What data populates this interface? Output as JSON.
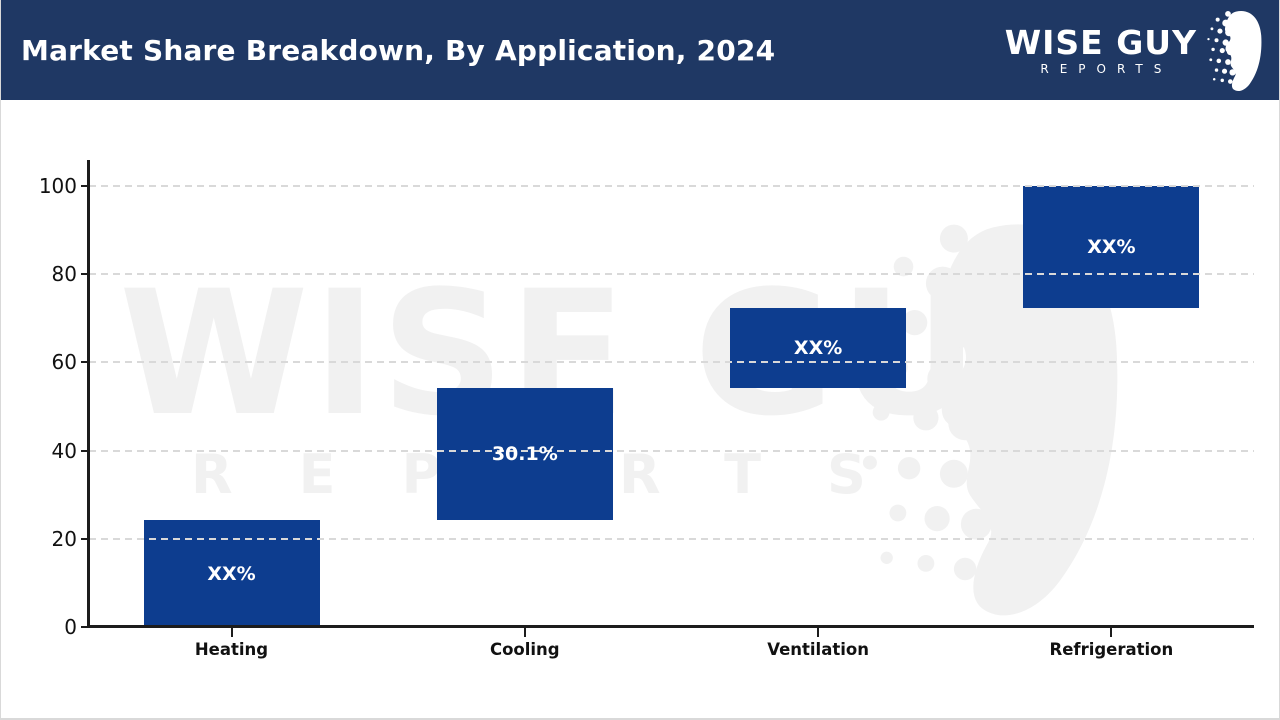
{
  "header": {
    "title": "Market Share Breakdown, By Application, 2024",
    "logo": {
      "title": "WISE GUY",
      "subtitle": "REPORTS"
    }
  },
  "watermark": {
    "title": "WISE GUY",
    "subtitle": "REPORTS"
  },
  "colors": {
    "header_bg": "#1f3864",
    "bar": "#0d3d8f",
    "grid": "#d9d9d9",
    "axis": "#1c1c1c",
    "bar_label": "#ffffff",
    "watermark": "#f1f1f1"
  },
  "chart_data": {
    "type": "bar",
    "subtype": "waterfall-floating-bars",
    "title": "Market Share Breakdown, By Application, 2024",
    "categories": [
      "Heating",
      "Cooling",
      "Ventilation",
      "Refrigeration"
    ],
    "segments": [
      {
        "category": "Heating",
        "start": 0,
        "end": 24.2,
        "label": "XX%"
      },
      {
        "category": "Cooling",
        "start": 24.2,
        "end": 54.3,
        "label": "30.1%"
      },
      {
        "category": "Ventilation",
        "start": 54.3,
        "end": 72.4,
        "label": "XX%"
      },
      {
        "category": "Refrigeration",
        "start": 72.4,
        "end": 100,
        "label": "XX%"
      }
    ],
    "xlabel": "",
    "ylabel": "",
    "ylim": [
      0,
      100
    ],
    "yticks": [
      0,
      20,
      40,
      60,
      80,
      100
    ],
    "grid": "horizontal dashed, drawn above bars",
    "legend": "none",
    "bar_color": "#0d3d8f"
  }
}
